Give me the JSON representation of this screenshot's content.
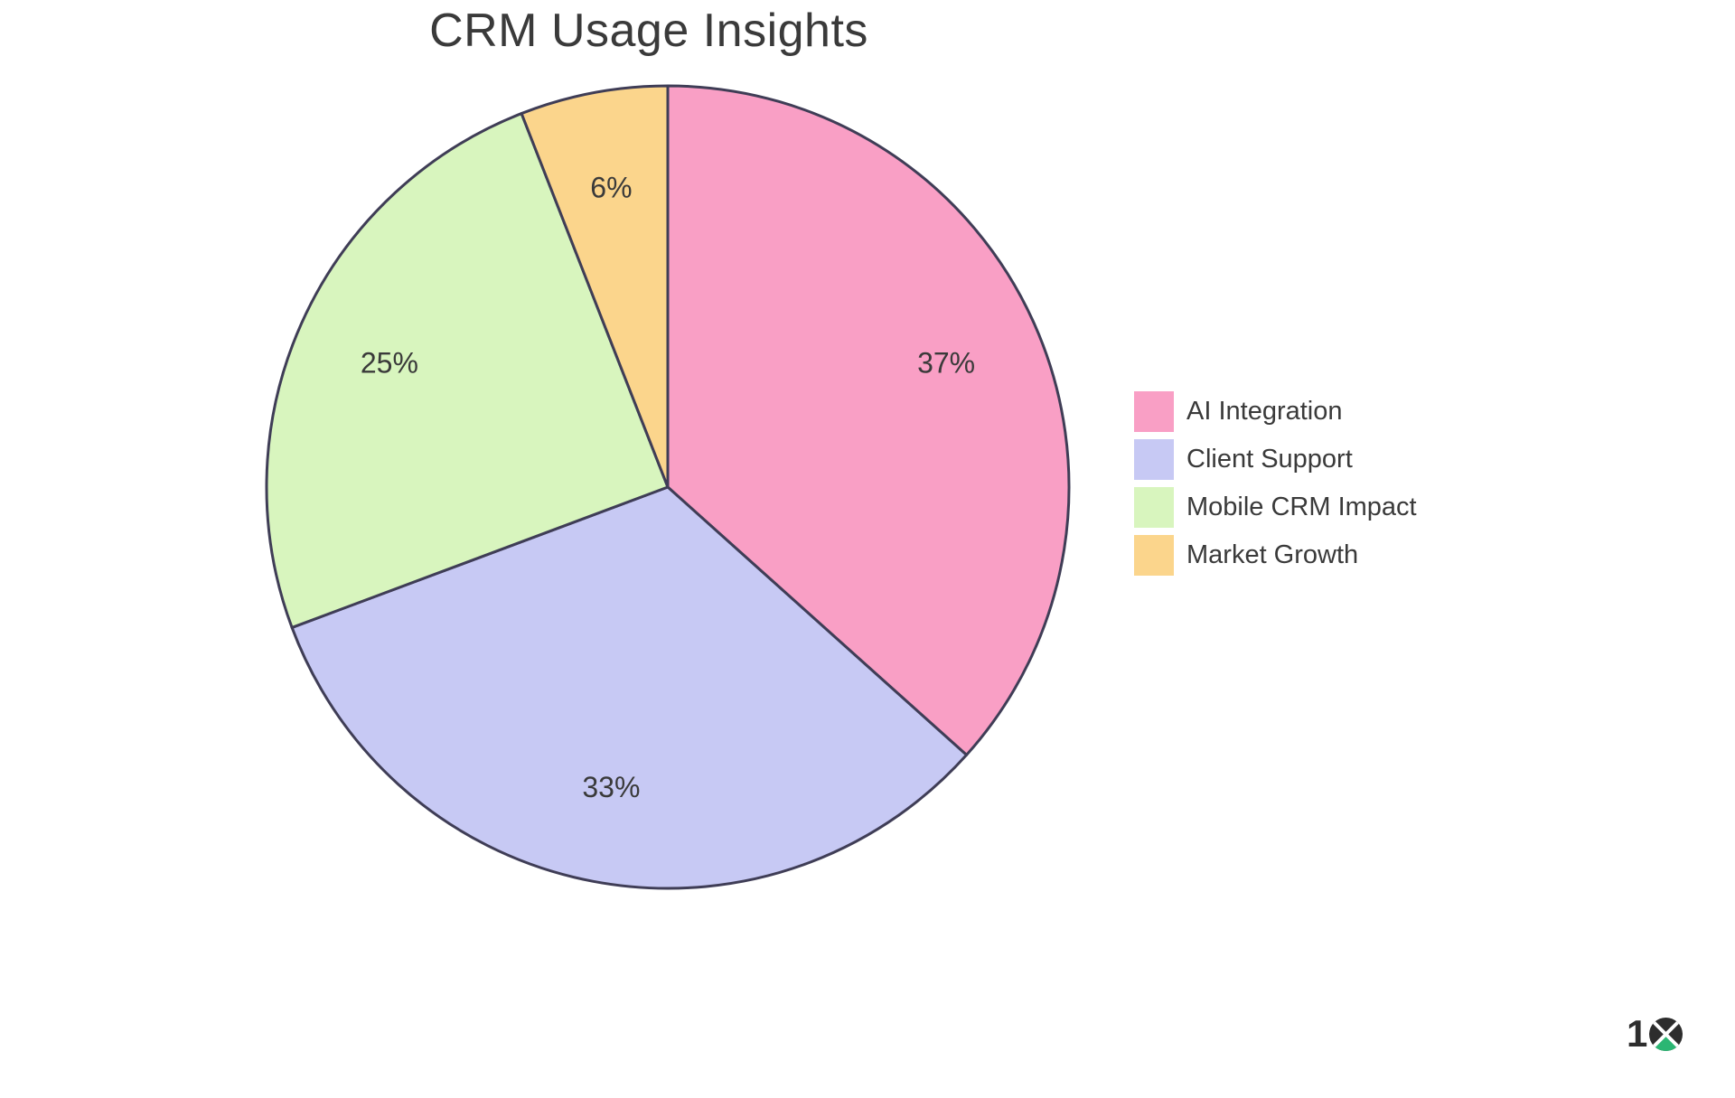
{
  "chart_data": {
    "type": "pie",
    "title": "CRM Usage Insights",
    "categories": [
      "AI Integration",
      "Client Support",
      "Mobile CRM Impact",
      "Market Growth"
    ],
    "values": [
      37,
      33,
      25,
      6
    ],
    "slices": [
      {
        "label": "AI Integration",
        "value": 37,
        "pct_label": "37%",
        "color": "#F99FC5"
      },
      {
        "label": "Client Support",
        "value": 33,
        "pct_label": "33%",
        "color": "#C7C9F4"
      },
      {
        "label": "Mobile CRM Impact",
        "value": 25,
        "pct_label": "25%",
        "color": "#D8F5BE"
      },
      {
        "label": "Market Growth",
        "value": 6,
        "pct_label": "6%",
        "color": "#FBD58C"
      }
    ],
    "start_angle_deg": -90,
    "direction": "clockwise",
    "legend_position": "right",
    "stroke_color": "#3F3D56",
    "stroke_width": 3,
    "label_color": "#3A3A3A"
  },
  "watermark": {
    "text": "1",
    "icon_dark_color": "#2D2D2D",
    "icon_green_color": "#2BB673"
  }
}
